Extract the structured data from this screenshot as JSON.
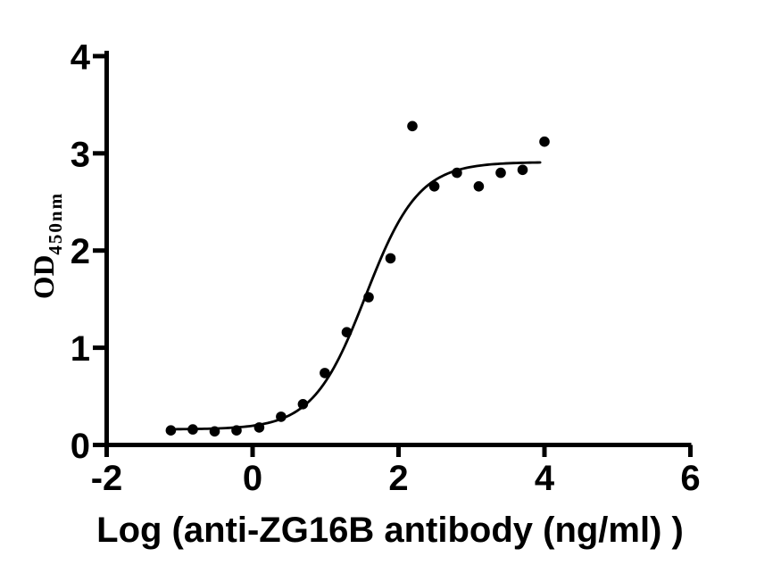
{
  "figure": {
    "background_color": "#ffffff",
    "ink_color": "#000000"
  },
  "chart_data": {
    "type": "scatter",
    "title": "",
    "xlabel": "Log（anti-ZG16B antibody（ng/ml） ）",
    "ylabel_main": "OD",
    "ylabel_sub": "450nm",
    "xlim": [
      -2,
      6
    ],
    "ylim": [
      0,
      4
    ],
    "xticks": [
      "-2",
      "0",
      "2",
      "4",
      "6"
    ],
    "yticks": [
      "0",
      "1",
      "2",
      "3",
      "4"
    ],
    "grid": false,
    "legend": "none",
    "marker_color": "#000000",
    "line_color": "#000000",
    "series": [
      {
        "name": "OD450 measurements",
        "type": "scatter",
        "x": [
          -1.12,
          -0.82,
          -0.52,
          -0.22,
          0.09,
          0.39,
          0.69,
          0.99,
          1.29,
          1.59,
          1.89,
          2.19,
          2.49,
          2.8,
          3.1,
          3.4,
          3.7,
          4.0
        ],
        "y": [
          0.15,
          0.16,
          0.14,
          0.15,
          0.18,
          0.29,
          0.42,
          0.74,
          1.16,
          1.52,
          1.92,
          3.28,
          2.66,
          2.8,
          2.66,
          2.8,
          2.83,
          3.12
        ]
      },
      {
        "name": "4PL fit curve",
        "type": "line",
        "fit_4pl": {
          "bottom": 0.16,
          "top": 2.91,
          "log_ec50": 1.55,
          "hill": 1.2
        },
        "x_domain": [
          -1.13,
          3.94
        ]
      }
    ]
  }
}
